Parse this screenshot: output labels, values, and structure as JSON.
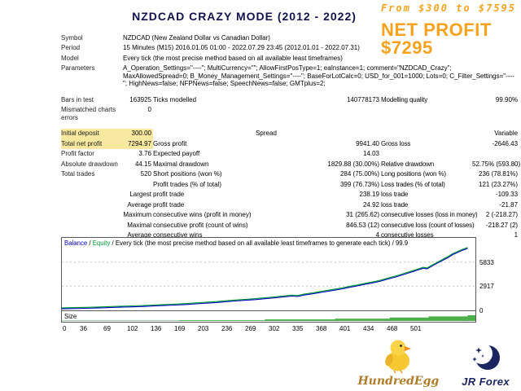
{
  "header": {
    "title": "NZDCAD CRAZY MODE (2012 - 2022)",
    "tagline": "From $300 to $7595",
    "net_profit_line1": "NET PROFIT",
    "net_profit_line2": "$7295",
    "accent_color": "#f6a21d",
    "title_color": "#12124e"
  },
  "report": {
    "highlight_color": "#f9e9a0",
    "rows": [
      {
        "label": "Symbol",
        "span": "NZDCAD (New Zealand Dollar vs Canadian Dollar)"
      },
      {
        "label": "Period",
        "span": "15 Minutes (M15) 2016.01.05 01:00 - 2022.07.29 23:45 (2012.01.01 - 2022.07.31)"
      },
      {
        "label": "Model",
        "span": "Every tick (the most precise method based on all available least timeframes)"
      },
      {
        "label": "Parameters",
        "span": "A_Operation_Settings=\"----\"; MultiCurrency=\"\"; AllowFirstPosType=1; eaInstance=1; comment=\"NZDCAD_Crazy\"; MaxAllowedSpread=0; B_Money_Management_Settings=\"----\"; BaseForLotCalc=0; USD_for_001=1000; Lots=0; C_Filter_Settings=\"----\"; HighNews=false; NFPNews=false; SpeechNews=false; GMTplus=2;"
      },
      {
        "spacer": true
      },
      {
        "label": "Bars in test",
        "v1": "163925",
        "l2": "Ticks modelled",
        "v2": "140778173",
        "l3": "Modelling quality",
        "v3": "99.90%"
      },
      {
        "label": "Mismatched charts errors",
        "v1": "0"
      },
      {
        "spacer": true
      },
      {
        "label": "Initial deposit",
        "v1": "300.00",
        "l2c": "Spread",
        "v3": "Variable",
        "highlight": true
      },
      {
        "label": "Total net profit",
        "v1": "7294.97",
        "l2": "Gross profit",
        "v2": "9941.40",
        "l3": "Gross loss",
        "v3": "-2646.43",
        "highlight": true
      },
      {
        "label": "Profit factor",
        "v1": "3.76",
        "l2": "Expected payoff",
        "v2": "14.03",
        "l3": "",
        "v3": ""
      },
      {
        "label": "Absolute drawdown",
        "v1": "44.15",
        "l2": "Maximal drawdown",
        "v2": "1829.88 (30.00%)",
        "l3": "Relative drawdown",
        "v3": "52.75% (593.80)"
      },
      {
        "label": "Total trades",
        "v1": "520",
        "l2": "Short positions (won %)",
        "v2": "284 (75.00%)",
        "l3": "Long positions (won %)",
        "v3": "236 (78.81%)"
      },
      {
        "label": "",
        "v1": "",
        "l2": "Profit trades (% of total)",
        "v2": "399 (76.73%)",
        "l3": "Loss trades (% of total)",
        "v3": "121 (23.27%)"
      },
      {
        "label": "",
        "v1": "Largest",
        "l2": "profit trade",
        "v2": "238.19",
        "l3": "loss trade",
        "v3": "-109.33"
      },
      {
        "label": "",
        "v1": "Average",
        "l2": "profit trade",
        "v2": "24.92",
        "l3": "loss trade",
        "v3": "-21.87"
      },
      {
        "label": "",
        "v1": "Maximum",
        "l2": "consecutive wins (profit in money)",
        "v2": "31 (265.62)",
        "l3": "consecutive losses (loss in money)",
        "v3": "2 (-218.27)"
      },
      {
        "label": "",
        "v1": "Maximal",
        "l2": "consecutive profit (count of wins)",
        "v2": "846.53 (12)",
        "l3": "consecutive loss (count of losses)",
        "v3": "-218.27 (2)"
      },
      {
        "label": "",
        "v1": "Average",
        "l2": "consecutive wins",
        "v2": "4",
        "l3": "consecutive losses",
        "v3": "1"
      }
    ]
  },
  "chart_data": {
    "type": "line",
    "legend": {
      "balance_label": "Balance",
      "sep": " / ",
      "equity_label": "Equity",
      "desc": " / Every tick (the most precise method based on all available least timeframes to generate each tick) / 99.9"
    },
    "balance_color": "#0000c0",
    "equity_color": "#009933",
    "grid_color": "#c8c8c8",
    "y_ticks": [
      0,
      2917,
      5833
    ],
    "y_max": 8750,
    "x_ticks": [
      0,
      36,
      69,
      102,
      136,
      169,
      203,
      236,
      269,
      302,
      335,
      368,
      401,
      434,
      468,
      501
    ],
    "x_max": 530,
    "size_label": "Size",
    "size_max": 0.75,
    "size_points": [
      [
        0,
        0.05
      ],
      [
        150,
        0.1
      ],
      [
        260,
        0.2
      ],
      [
        350,
        0.3
      ],
      [
        420,
        0.45
      ],
      [
        470,
        0.6
      ],
      [
        520,
        0.75
      ]
    ],
    "series": [
      {
        "name": "Balance/Equity",
        "points": [
          [
            0,
            300
          ],
          [
            15,
            330
          ],
          [
            30,
            360
          ],
          [
            45,
            400
          ],
          [
            60,
            450
          ],
          [
            75,
            500
          ],
          [
            90,
            545
          ],
          [
            105,
            590
          ],
          [
            118,
            650
          ],
          [
            130,
            700
          ],
          [
            145,
            760
          ],
          [
            160,
            830
          ],
          [
            172,
            900
          ],
          [
            185,
            980
          ],
          [
            198,
            1060
          ],
          [
            210,
            1160
          ],
          [
            222,
            1250
          ],
          [
            236,
            1340
          ],
          [
            248,
            1420
          ],
          [
            260,
            1520
          ],
          [
            272,
            1620
          ],
          [
            283,
            1730
          ],
          [
            295,
            1840
          ],
          [
            302,
            1790
          ],
          [
            310,
            1960
          ],
          [
            322,
            2120
          ],
          [
            335,
            2330
          ],
          [
            348,
            2540
          ],
          [
            360,
            2720
          ],
          [
            368,
            2890
          ],
          [
            378,
            3060
          ],
          [
            388,
            3250
          ],
          [
            398,
            3430
          ],
          [
            408,
            3640
          ],
          [
            418,
            3900
          ],
          [
            428,
            4150
          ],
          [
            436,
            4380
          ],
          [
            445,
            4650
          ],
          [
            455,
            4950
          ],
          [
            463,
            5200
          ],
          [
            468,
            5120
          ],
          [
            475,
            5500
          ],
          [
            482,
            5850
          ],
          [
            489,
            6200
          ],
          [
            495,
            6500
          ],
          [
            501,
            6850
          ],
          [
            507,
            7100
          ],
          [
            513,
            7350
          ],
          [
            518,
            7520
          ],
          [
            520,
            7595
          ]
        ]
      }
    ]
  },
  "footer": {
    "brand1": "HundredEgg",
    "brand2": "JR Forex",
    "brand1_icon": "chick-icon",
    "brand2_icon": "crescent-moon-icon"
  }
}
